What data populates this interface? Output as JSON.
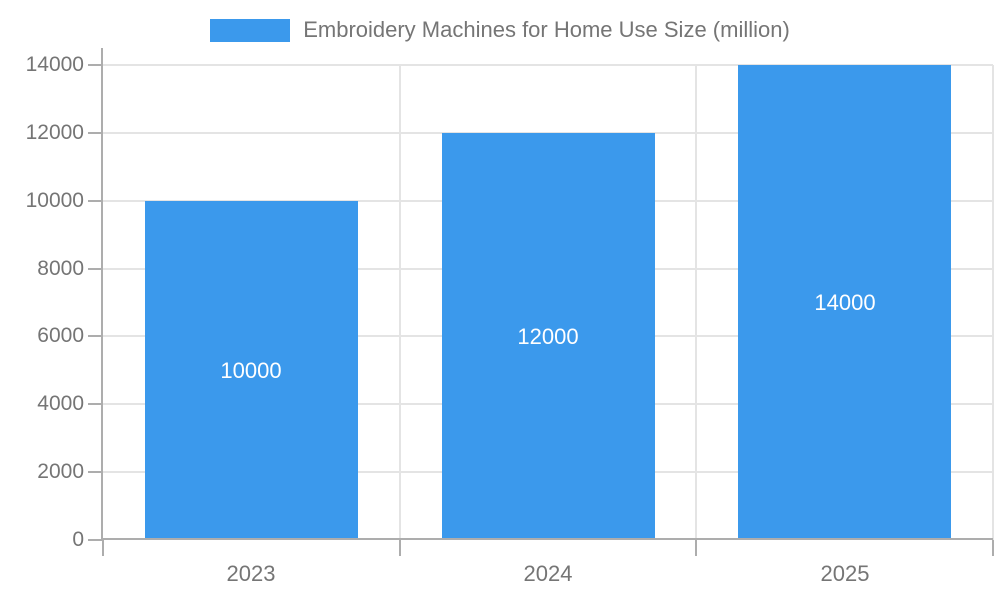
{
  "chart_data": {
    "type": "bar",
    "title": "Embroidery Machines for Home Use Size (million)",
    "legend_position": "top",
    "categories": [
      "2023",
      "2024",
      "2025"
    ],
    "series": [
      {
        "name": "Embroidery Machines for Home Use Size (million)",
        "values": [
          10000,
          12000,
          14000
        ]
      }
    ],
    "bar_labels": [
      "10000",
      "12000",
      "14000"
    ],
    "xlabel": "",
    "ylabel": "",
    "ylim": [
      0,
      14000
    ],
    "yticks": [
      0,
      2000,
      4000,
      6000,
      8000,
      10000,
      12000,
      14000
    ],
    "grid": true,
    "legend_entries": [
      "Embroidery Machines for Home Use Size (million)"
    ]
  },
  "colors": {
    "bar": "#3B99EC",
    "bar_label_text": "#FFFFFF",
    "axis_line": "#ADADAD",
    "gridline": "#E4E4E4",
    "axis_text": "#757575",
    "legend_text": "#757575",
    "background": "#FFFFFF"
  }
}
